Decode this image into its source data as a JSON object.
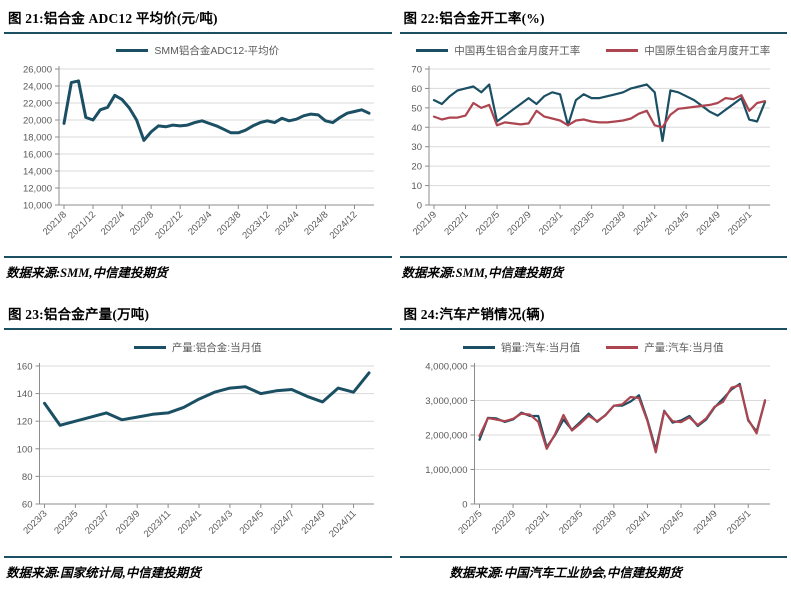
{
  "colors": {
    "accent_blue": "#1b4f63",
    "accent_red": "#ad4550",
    "rule": "#1b4f63",
    "grid": "#d9d9d9",
    "axis": "#8c8c8c",
    "tick_text": "#595959"
  },
  "figures": [
    {
      "title": "图 21:铝合金 ADC12 平均价(元/吨)",
      "source": "数据来源:SMM,中信建投期货",
      "chart_data": {
        "type": "line",
        "title": "铝合金 ADC12 平均价(元/吨)",
        "xlabel": "",
        "ylabel": "",
        "grid": "horizontal",
        "legend_position": "top",
        "ylim": [
          10000,
          26000
        ],
        "ystep": 2000,
        "y_format": "comma",
        "tick_every": 4,
        "x": [
          "2021/8",
          "2021/9",
          "2021/10",
          "2021/11",
          "2021/12",
          "2022/1",
          "2022/2",
          "2022/3",
          "2022/4",
          "2022/5",
          "2022/6",
          "2022/7",
          "2022/8",
          "2022/9",
          "2022/10",
          "2022/11",
          "2022/12",
          "2023/1",
          "2023/2",
          "2023/3",
          "2023/4",
          "2023/5",
          "2023/6",
          "2023/7",
          "2023/8",
          "2023/9",
          "2023/10",
          "2023/11",
          "2023/12",
          "2024/1",
          "2024/2",
          "2024/3",
          "2024/4",
          "2024/5",
          "2024/6",
          "2024/7",
          "2024/8",
          "2024/9",
          "2024/10",
          "2024/11",
          "2024/12",
          "2025/1",
          "2025/2"
        ],
        "series": [
          {
            "name": "SMM铝合金ADC12-平均价",
            "color": "#1b4f63",
            "stroke_width": 3,
            "values": [
              19600,
              24400,
              24600,
              20300,
              20000,
              21200,
              21500,
              22900,
              22400,
              21400,
              20000,
              17600,
              18600,
              19300,
              19200,
              19400,
              19300,
              19400,
              19700,
              19900,
              19600,
              19300,
              18900,
              18500,
              18500,
              18800,
              19300,
              19700,
              19900,
              19700,
              20200,
              19900,
              20100,
              20500,
              20700,
              20600,
              19900,
              19700,
              20300,
              20800,
              21000,
              21200,
              20800
            ]
          }
        ]
      }
    },
    {
      "title": "图 22:铝合金开工率(%)",
      "source": "数据来源:SMM,中信建投期货",
      "chart_data": {
        "type": "line",
        "title": "铝合金开工率(%)",
        "xlabel": "",
        "ylabel": "",
        "grid": "horizontal",
        "legend_position": "top",
        "ylim": [
          0,
          70
        ],
        "ystep": 10,
        "y_format": "plain",
        "tick_every": 4,
        "x": [
          "2021/9",
          "2021/10",
          "2021/11",
          "2021/12",
          "2022/1",
          "2022/2",
          "2022/3",
          "2022/4",
          "2022/5",
          "2022/6",
          "2022/7",
          "2022/8",
          "2022/9",
          "2022/10",
          "2022/11",
          "2022/12",
          "2023/1",
          "2023/2",
          "2023/3",
          "2023/4",
          "2023/5",
          "2023/6",
          "2023/7",
          "2023/8",
          "2023/9",
          "2023/10",
          "2023/11",
          "2023/12",
          "2024/1",
          "2024/2",
          "2024/3",
          "2024/4",
          "2024/5",
          "2024/6",
          "2024/7",
          "2024/8",
          "2024/9",
          "2024/10",
          "2024/11",
          "2024/12",
          "2025/1",
          "2025/2",
          "2025/3"
        ],
        "series": [
          {
            "name": "中国再生铝合金月度开工率",
            "color": "#1b4f63",
            "stroke_width": 2.2,
            "values": [
              54,
              52,
              56,
              59,
              60,
              61,
              58,
              62,
              43,
              46,
              49,
              52,
              55,
              52,
              56,
              58,
              57,
              41,
              54,
              57,
              55,
              55,
              56,
              57,
              58,
              60,
              61,
              62,
              58,
              33,
              59,
              58,
              56,
              54,
              51,
              48,
              46,
              49,
              52,
              55,
              44,
              43,
              53
            ]
          },
          {
            "name": "中国原生铝合金月度开工率",
            "color": "#ad4550",
            "stroke_width": 2.2,
            "values": [
              45.5,
              44,
              45,
              45,
              46,
              52.5,
              50,
              51.5,
              41,
              42.5,
              42,
              41.5,
              42,
              48.5,
              45.5,
              44.5,
              43.5,
              41,
              43.5,
              44,
              43,
              42.5,
              42.5,
              43,
              43.5,
              44.5,
              47,
              48.5,
              41,
              40,
              46.5,
              49.5,
              50,
              50.5,
              51,
              51.5,
              52.5,
              55,
              54.5,
              56.5,
              48.5,
              52.5,
              53.5
            ]
          }
        ]
      }
    },
    {
      "title": "图 23:铝合金产量(万吨)",
      "source": "数据来源:国家统计局,中信建投期货",
      "chart_data": {
        "type": "line",
        "title": "铝合金产量(万吨)",
        "xlabel": "",
        "ylabel": "",
        "grid": "horizontal",
        "legend_position": "top",
        "ylim": [
          60,
          160
        ],
        "ystep": 20,
        "y_format": "plain",
        "tick_every": 2,
        "x": [
          "2023/3",
          "2023/4",
          "2023/5",
          "2023/6",
          "2023/7",
          "2023/8",
          "2023/9",
          "2023/10",
          "2023/11",
          "2023/12",
          "2024/1",
          "2024/2",
          "2024/3",
          "2024/4",
          "2024/5",
          "2024/6",
          "2024/7",
          "2024/8",
          "2024/9",
          "2024/10",
          "2024/11",
          "2024/12"
        ],
        "series": [
          {
            "name": "产量:铝合金:当月值",
            "color": "#1b4f63",
            "stroke_width": 3,
            "values": [
              133,
              117,
              120,
              123,
              126,
              121,
              123,
              125,
              126,
              130,
              136,
              141,
              144,
              145,
              140,
              142,
              143,
              138,
              134,
              144,
              141,
              155
            ]
          }
        ]
      }
    },
    {
      "title": "图 24:汽车产销情况(辆)",
      "source": "数据来源:中国汽车工业协会,中信建投期货",
      "chart_data": {
        "type": "line",
        "title": "汽车产销情况(辆)",
        "xlabel": "",
        "ylabel": "",
        "grid": "horizontal",
        "legend_position": "top",
        "ylim": [
          0,
          4000000
        ],
        "ystep": 1000000,
        "y_format": "comma",
        "tick_every": 4,
        "x": [
          "2022/5",
          "2022/6",
          "2022/7",
          "2022/8",
          "2022/9",
          "2022/10",
          "2022/11",
          "2022/12",
          "2023/1",
          "2023/2",
          "2023/3",
          "2023/4",
          "2023/5",
          "2023/6",
          "2023/7",
          "2023/8",
          "2023/9",
          "2023/10",
          "2023/11",
          "2023/12",
          "2024/1",
          "2024/2",
          "2024/3",
          "2024/4",
          "2024/5",
          "2024/6",
          "2024/7",
          "2024/8",
          "2024/9",
          "2024/10",
          "2024/11",
          "2024/12",
          "2025/1",
          "2025/2",
          "2025/3"
        ],
        "series": [
          {
            "name": "销量:汽车:当月值",
            "color": "#1b4f63",
            "stroke_width": 2.2,
            "values": [
              1860000,
              2500000,
              2480000,
              2380000,
              2450000,
              2650000,
              2550000,
              2550000,
              1650000,
              2000000,
              2450000,
              2150000,
              2380000,
              2620000,
              2380000,
              2580000,
              2850000,
              2850000,
              2970000,
              3150000,
              2440000,
              1580000,
              2700000,
              2360000,
              2420000,
              2550000,
              2260000,
              2450000,
              2800000,
              3050000,
              3320000,
              3480000,
              2420000,
              2100000,
              2980000
            ]
          },
          {
            "name": "产量:汽车:当月值",
            "color": "#ad4550",
            "stroke_width": 2.2,
            "values": [
              1970000,
              2490000,
              2450000,
              2400000,
              2470000,
              2620000,
              2590000,
              2380000,
              1600000,
              2030000,
              2580000,
              2130000,
              2330000,
              2560000,
              2400000,
              2570000,
              2850000,
              2890000,
              3100000,
              3070000,
              2410000,
              1500000,
              2680000,
              2400000,
              2370000,
              2510000,
              2290000,
              2480000,
              2820000,
              2960000,
              3370000,
              3440000,
              2450000,
              2050000,
              3010000
            ]
          }
        ]
      }
    }
  ]
}
